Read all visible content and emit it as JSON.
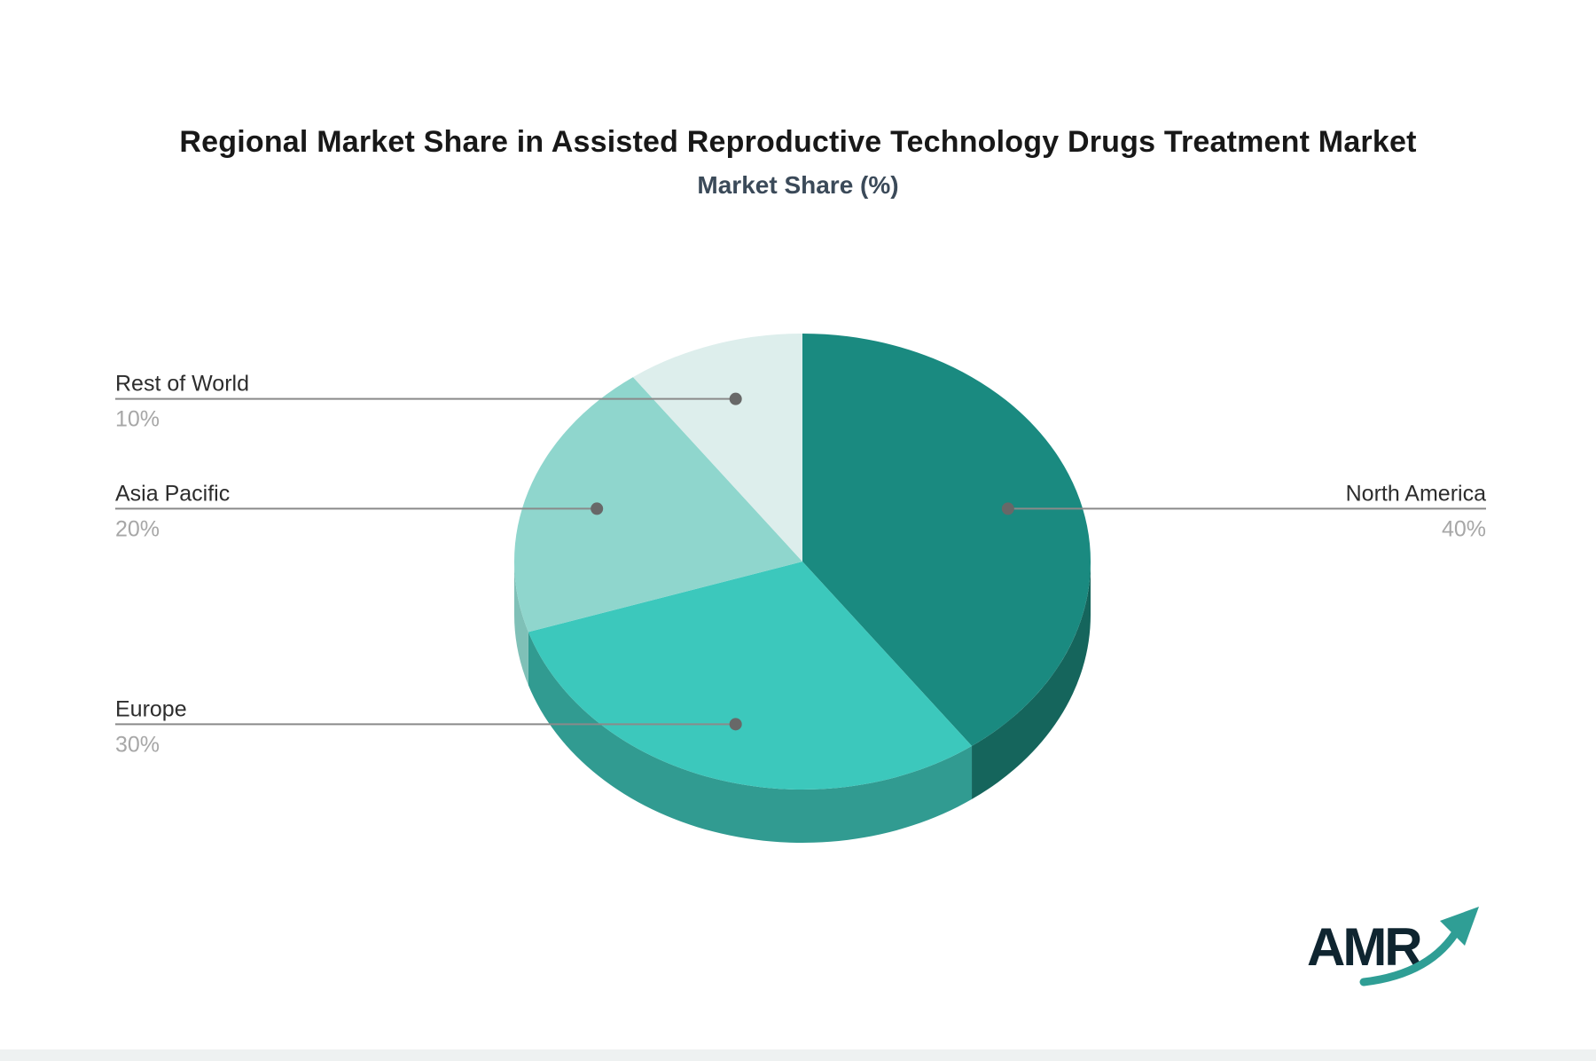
{
  "header": {
    "title": "Regional Market Share in Assisted Reproductive Technology Drugs Treatment Market",
    "subtitle": "Market Share (%)"
  },
  "chart_data": {
    "type": "pie",
    "title": "Regional Market Share in Assisted Reproductive Technology Drugs Treatment Market",
    "subtitle": "Market Share (%)",
    "unit": "%",
    "effect": "3d",
    "direction": "clockwise",
    "start_angle": "12-o-clock",
    "legend_position": "none",
    "labels": [
      "North America",
      "Europe",
      "Asia Pacific",
      "Rest of World"
    ],
    "values": [
      40,
      30,
      20,
      10
    ],
    "display_values": [
      "40%",
      "30%",
      "20%",
      "10%"
    ],
    "colors": [
      "#1a8a80",
      "#3cc8bc",
      "#8fd6cd",
      "#ddeeec"
    ],
    "side_colors": [
      "#15655c",
      "#319b91",
      "#7fc0b7",
      "#c9dedb"
    ],
    "style": {
      "label_color": "#2d2d2d",
      "value_color": "#a7a7a7",
      "line_color": "#8a8a8a",
      "dot_color": "#686868"
    }
  },
  "logo": {
    "text": "AMR",
    "text_color": "#0f2530",
    "arrow_color": "#2f9e95"
  }
}
